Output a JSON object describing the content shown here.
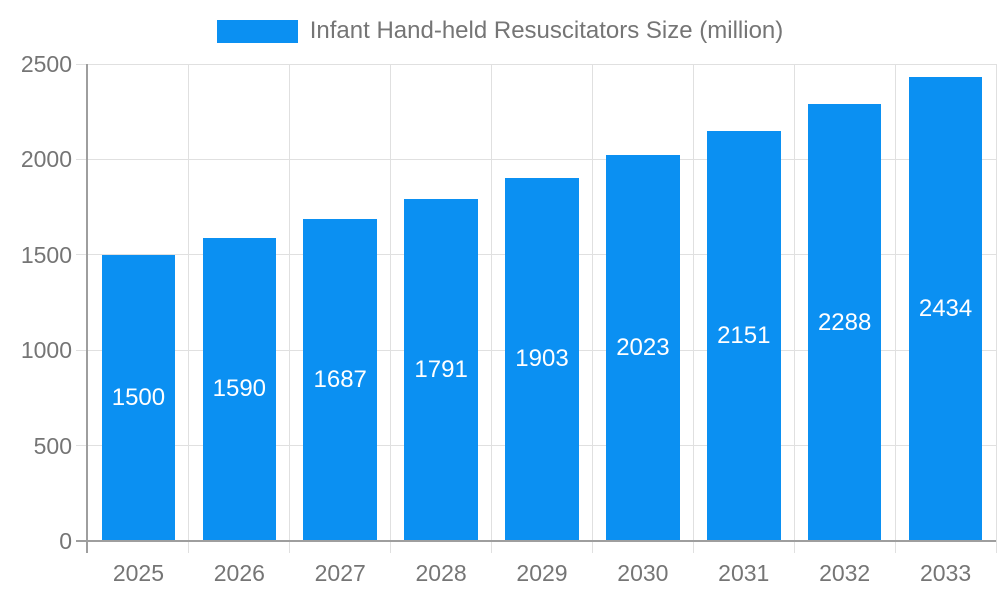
{
  "chart_data": {
    "type": "bar",
    "title": "Infant Hand-held Resuscitators Size (million)",
    "xlabel": "",
    "ylabel": "",
    "categories": [
      "2025",
      "2026",
      "2027",
      "2028",
      "2029",
      "2030",
      "2031",
      "2032",
      "2033"
    ],
    "series": [
      {
        "name": "Infant Hand-held Resuscitators Size (million)",
        "values": [
          1500,
          1590,
          1687,
          1791,
          1903,
          2023,
          2151,
          2288,
          2434
        ]
      }
    ],
    "bar_value_labels": [
      "1500",
      "1590",
      "1687",
      "1791",
      "1903",
      "2023",
      "2151",
      "2288",
      "2434"
    ],
    "ylim": [
      0,
      2500
    ],
    "yticks": [
      0,
      500,
      1000,
      1500,
      2000,
      2500
    ],
    "grid": true,
    "legend_position": "top"
  },
  "legend": {
    "label": "Infant Hand-held Resuscitators Size (million)"
  },
  "colors": {
    "bar": "#0b90f2",
    "axis": "#9e9e9e",
    "grid": "#e0e0e0",
    "axis_text": "#757575",
    "bar_label_text": "#ffffff",
    "background": "#ffffff"
  }
}
